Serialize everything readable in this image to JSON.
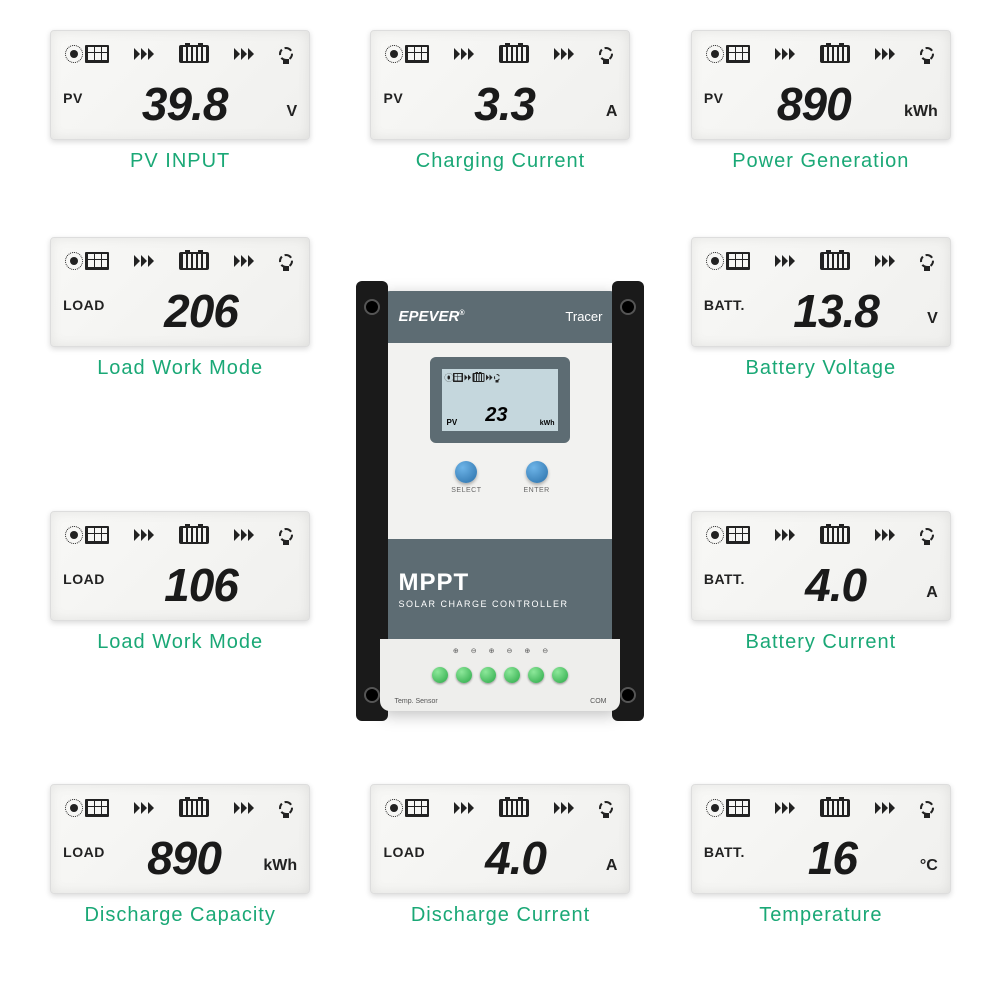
{
  "caption_color": "#1aa876",
  "device": {
    "brand": "EPEVER",
    "model": "Tracer",
    "title": "MPPT",
    "subtitle": "SOLAR CHARGE CONTROLLER",
    "btn_left": "SELECT",
    "btn_right": "ENTER",
    "mini_label": "PV",
    "mini_value": "23",
    "mini_unit": "kWh",
    "temp_label": "Temp. Sensor",
    "com_label": "COM"
  },
  "screens": [
    {
      "label": "PV",
      "value": "39.8",
      "unit": "V",
      "caption": "PV  INPUT"
    },
    {
      "label": "PV",
      "value": "3.3",
      "unit": "A",
      "caption": "Charging  Current"
    },
    {
      "label": "PV",
      "value": "890",
      "unit": "kWh",
      "caption": "Power  Generation"
    },
    {
      "label": "LOAD",
      "value": "206",
      "unit": "",
      "caption": "Load  Work  Mode"
    },
    {
      "label": "BATT.",
      "value": "13.8",
      "unit": "V",
      "caption": "Battery  Voltage"
    },
    {
      "label": "LOAD",
      "value": "106",
      "unit": "",
      "caption": "Load  Work  Mode"
    },
    {
      "label": "BATT.",
      "value": "4.0",
      "unit": "A",
      "caption": "Battery  Current"
    },
    {
      "label": "LOAD",
      "value": "890",
      "unit": "kWh",
      "caption": "Discharge  Capacity"
    },
    {
      "label": "LOAD",
      "value": "4.0",
      "unit": "A",
      "caption": "Discharge  Current"
    },
    {
      "label": "BATT.",
      "value": "16",
      "unit": "°C",
      "caption": "Temperature"
    }
  ]
}
